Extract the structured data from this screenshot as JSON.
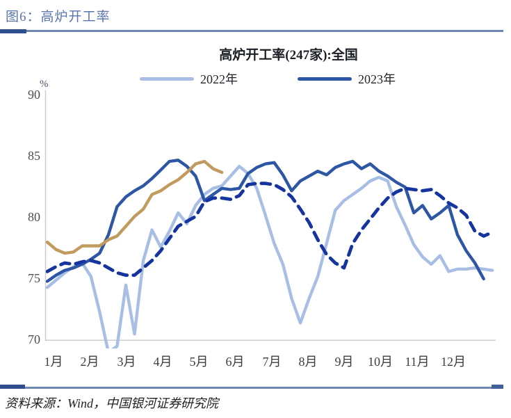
{
  "header": {
    "figure_title": "图6：高炉开工率"
  },
  "chart": {
    "title": "高炉开工率(247家):全国",
    "unit_label": "%",
    "y_ticks": [
      "90",
      "85",
      "80",
      "75",
      "70"
    ],
    "x_labels": [
      "1月",
      "2月",
      "3月",
      "4月",
      "5月",
      "6月",
      "7月",
      "8月",
      "9月",
      "10月",
      "11月",
      "12月"
    ],
    "legend": [
      {
        "label": "2022年",
        "color": "#a9bee5"
      },
      {
        "label": "2023年",
        "color": "#2d56a5"
      }
    ]
  },
  "source": {
    "text": "资料来源：Wind，中国银河证券研究院"
  },
  "chart_data": {
    "type": "line",
    "title": "高炉开工率(247家):全国",
    "ylabel": "%",
    "ylim": [
      70,
      90
    ],
    "y_ticks": [
      90,
      85,
      80,
      75,
      70
    ],
    "x_categories": [
      "1月",
      "2月",
      "3月",
      "4月",
      "5月",
      "6月",
      "7月",
      "8月",
      "9月",
      "10月",
      "11月",
      "12月"
    ],
    "x_sampling": "weekly (≈52 points per year)",
    "grid": false,
    "legend_position": "top",
    "series": [
      {
        "name": "2022年",
        "color": "#a9bee5",
        "style": "solid",
        "in_legend": true,
        "values": [
          74.3,
          74.9,
          75.5,
          76.0,
          76.3,
          75.2,
          72.3,
          69.0,
          69.5,
          74.5,
          70.5,
          76.5,
          79.0,
          77.6,
          78.9,
          80.4,
          79.5,
          81.0,
          81.9,
          82.4,
          82.6,
          83.4,
          84.2,
          83.6,
          82.4,
          80.2,
          77.9,
          76.2,
          73.4,
          71.4,
          73.4,
          75.2,
          77.9,
          80.6,
          81.4,
          81.9,
          82.4,
          83.0,
          83.3,
          83.0,
          80.9,
          79.4,
          77.8,
          76.8,
          76.2,
          76.9,
          75.6,
          75.8,
          75.8,
          75.9,
          75.8,
          75.7
        ]
      },
      {
        "name": "2023年",
        "color": "#2d56a5",
        "style": "solid",
        "in_legend": true,
        "values": [
          74.8,
          75.3,
          75.7,
          75.9,
          76.2,
          76.6,
          77.1,
          78.6,
          80.9,
          81.7,
          82.2,
          82.6,
          83.2,
          83.9,
          84.6,
          84.7,
          84.2,
          83.4,
          81.4,
          81.9,
          82.4,
          82.3,
          82.4,
          83.6,
          84.1,
          84.4,
          84.5,
          83.5,
          82.2,
          83.0,
          83.4,
          83.8,
          83.5,
          84.1,
          84.4,
          84.6,
          84.0,
          84.4,
          83.8,
          83.4,
          82.9,
          82.5,
          80.4,
          81.0,
          79.9,
          80.4,
          81.0,
          78.6,
          77.3,
          76.3,
          75.0
        ]
      },
      {
        "name": "",
        "color": "#16349e",
        "style": "dashed",
        "in_legend": false,
        "values": [
          75.6,
          76.0,
          76.3,
          76.2,
          76.4,
          76.5,
          76.3,
          75.9,
          75.5,
          75.3,
          75.3,
          75.9,
          76.5,
          77.3,
          78.3,
          79.3,
          79.7,
          80.1,
          81.3,
          81.6,
          81.6,
          81.5,
          81.8,
          82.7,
          82.8,
          82.8,
          82.7,
          82.3,
          81.7,
          80.7,
          79.6,
          78.2,
          77.0,
          76.3,
          75.9,
          77.9,
          79.0,
          79.9,
          80.8,
          81.6,
          82.1,
          82.4,
          82.3,
          82.2,
          82.3,
          81.8,
          81.2,
          80.8,
          80.2,
          78.9,
          78.5,
          78.8
        ]
      },
      {
        "name": "",
        "color": "#c19a5e",
        "style": "solid",
        "in_legend": false,
        "values": [
          78.0,
          77.4,
          77.1,
          77.2,
          77.7,
          77.7,
          77.7,
          78.2,
          78.5,
          79.3,
          80.1,
          80.7,
          81.9,
          82.2,
          82.7,
          83.1,
          83.7,
          84.4,
          84.6,
          84.0,
          83.7
        ]
      }
    ]
  }
}
